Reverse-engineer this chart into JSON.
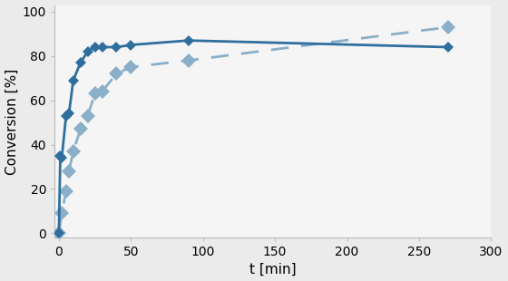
{
  "solid_line_x": [
    0,
    1,
    2,
    5,
    7,
    10,
    15,
    20,
    25,
    30,
    40,
    50,
    90,
    270
  ],
  "solid_line_y": [
    0,
    35,
    34,
    53,
    54,
    69,
    77,
    82,
    84,
    84,
    84,
    85,
    87,
    84
  ],
  "dashed_line_x": [
    0,
    2,
    5,
    7,
    10,
    15,
    20,
    25,
    30,
    40,
    50,
    90,
    270
  ],
  "dashed_line_y": [
    0,
    9,
    19,
    28,
    37,
    47,
    53,
    63,
    64,
    72,
    75,
    78,
    93
  ],
  "solid_color": "#2e6f9e",
  "dashed_color": "#8bafc8",
  "marker": "D",
  "markersize": 6,
  "linewidth": 2.0,
  "xlabel": "t [min]",
  "ylabel": "Conversion [%]",
  "xlim": [
    -3,
    300
  ],
  "ylim": [
    -2,
    103
  ],
  "xticks": [
    0,
    50,
    100,
    150,
    200,
    250,
    300
  ],
  "yticks": [
    0,
    20,
    40,
    60,
    80,
    100
  ],
  "background_color": "#ebebeb",
  "plot_bg_color": "#f5f5f5"
}
